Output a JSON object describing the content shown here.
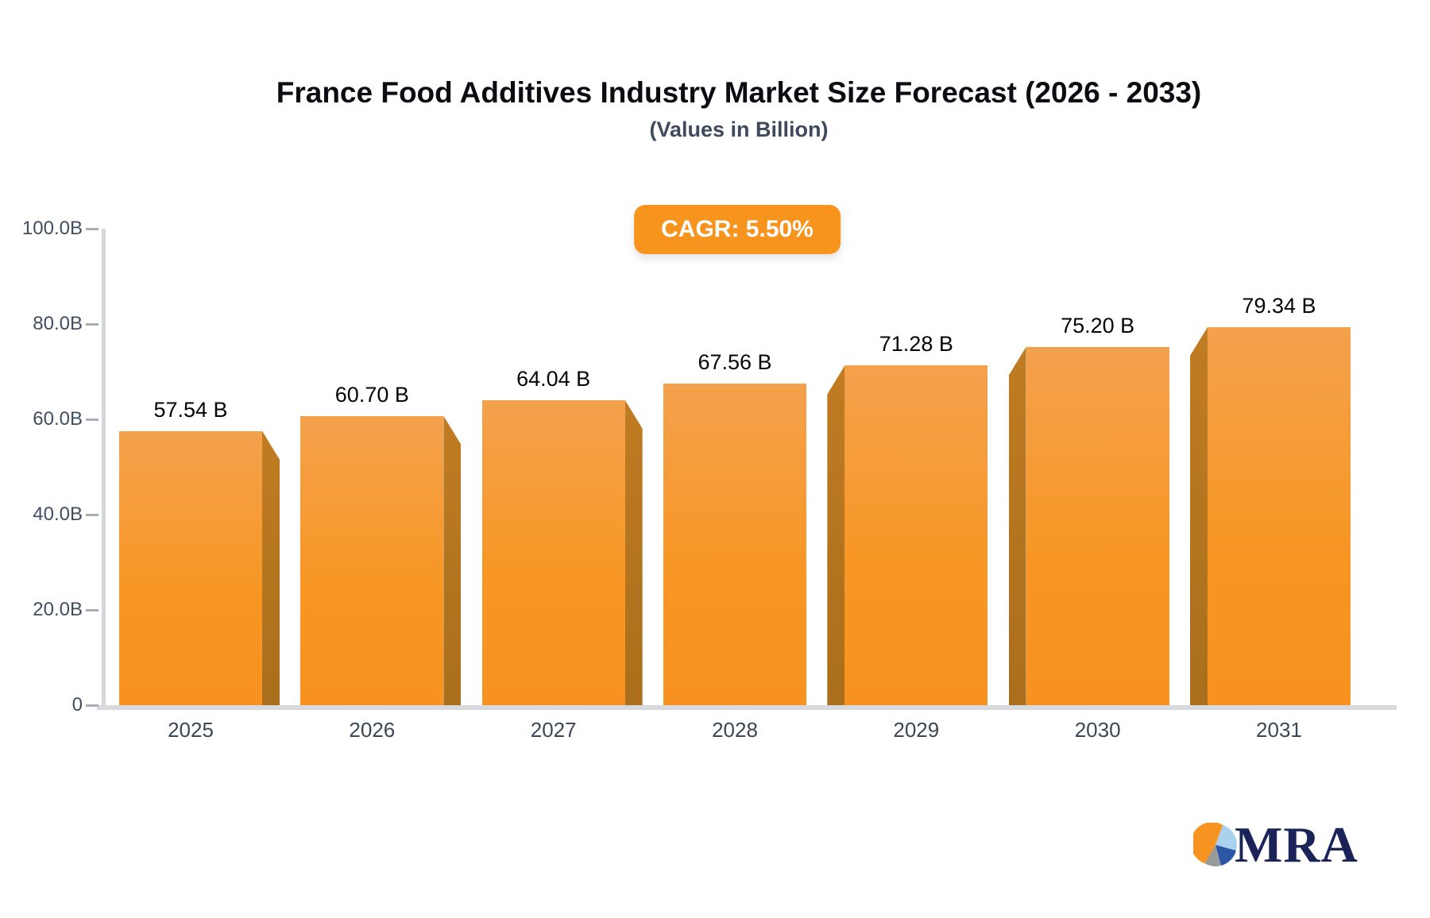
{
  "title": "France Food Additives Industry Market Size Forecast (2026 - 2033)",
  "subtitle": "(Values in Billion)",
  "badge": {
    "label": "CAGR: 5.50%"
  },
  "chart_data": {
    "type": "bar",
    "title": "France Food Additives Industry Market Size Forecast (2026 - 2033)",
    "subtitle": "(Values in Billion)",
    "cagr_label": "CAGR: 5.50%",
    "categories": [
      "2025",
      "2026",
      "2027",
      "2028",
      "2029",
      "2030",
      "2031"
    ],
    "values": [
      57.54,
      60.7,
      64.04,
      67.56,
      71.28,
      75.2,
      79.34
    ],
    "value_labels": [
      "57.54 B",
      "60.70 B",
      "64.04 B",
      "67.56 B",
      "71.28 B",
      "75.20 B",
      "79.34 B"
    ],
    "xlabel": "",
    "ylabel": "",
    "ylim": [
      0,
      100
    ],
    "yticks": [
      {
        "value": 100,
        "label": "100.0B"
      },
      {
        "value": 80,
        "label": "80.0B"
      },
      {
        "value": 60,
        "label": "60.0B"
      },
      {
        "value": 40,
        "label": "40.0B"
      },
      {
        "value": 20,
        "label": "20.0B"
      },
      {
        "value": 0,
        "label": "0"
      }
    ],
    "grid": false,
    "legend": "none",
    "bar_style": "3d-perspective",
    "colors": {
      "bar_face_top": "#f4a14d",
      "bar_face_bottom": "#f79220",
      "bar_side": "#b5731f",
      "badge_background": "#f7941e",
      "badge_text": "#ffffff",
      "axis_line": "#d3d6db",
      "tick_text": "#414e61",
      "value_label_text": "#060606"
    }
  },
  "logo": {
    "text": "MRA",
    "pie_colors": {
      "orange": "#f79320",
      "light_blue": "#a9d2ef",
      "dark_blue": "#2a56a4",
      "gray": "#98999b"
    }
  }
}
